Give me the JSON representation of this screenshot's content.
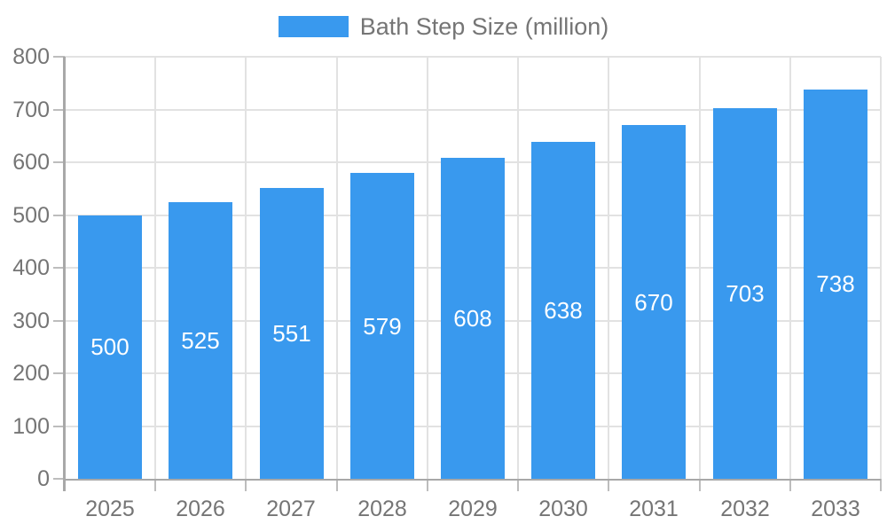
{
  "legend": {
    "label": "Bath Step Size (million)"
  },
  "colors": {
    "bar": "#3999EE",
    "bar_label": "#FFFFFF",
    "grid": "#E2E2E2",
    "axis": "#A8A8A8",
    "tick": "#BDBDBD",
    "label": "#757575"
  },
  "chart_data": {
    "type": "bar",
    "title": "",
    "categories": [
      "2025",
      "2026",
      "2027",
      "2028",
      "2029",
      "2030",
      "2031",
      "2032",
      "2033"
    ],
    "values": [
      500,
      525,
      551,
      579,
      608,
      638,
      670,
      703,
      738
    ],
    "series_name": "Bath Step Size (million)",
    "xlabel": "",
    "ylabel": "",
    "ylim": [
      0,
      800
    ],
    "yticks": [
      0,
      100,
      200,
      300,
      400,
      500,
      600,
      700,
      800
    ],
    "grid": "on",
    "legend_position": "top-center",
    "value_labels": "inside-middle"
  }
}
